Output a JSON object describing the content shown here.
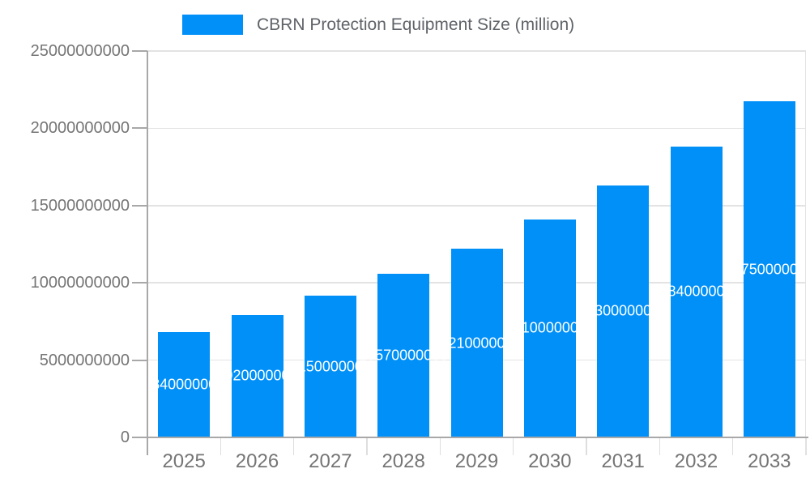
{
  "legend": {
    "label": "CBRN Protection Equipment Size (million)"
  },
  "chart_data": {
    "type": "bar",
    "title": "",
    "categories": [
      "2025",
      "2026",
      "2027",
      "2028",
      "2029",
      "2030",
      "2031",
      "2032",
      "2033"
    ],
    "series": [
      {
        "name": "CBRN Protection Equipment Size (million)",
        "values": [
          6840000000,
          7920000000,
          9150000000,
          10570000000,
          12210000000,
          14100000000,
          16300000000,
          18840000000,
          21750000000
        ]
      }
    ],
    "xlabel": "",
    "ylabel": "",
    "ylim": [
      0,
      25000000000
    ],
    "yticks": [
      0,
      5000000000,
      10000000000,
      15000000000,
      20000000000,
      25000000000
    ],
    "ytick_labels": [
      "0",
      "5000000000",
      "10000000000",
      "15000000000",
      "20000000000",
      "25000000000"
    ],
    "grid": "horizontal",
    "legend_position": "top-center",
    "value_labels": "raw value in white, centered at vertical middle of each bar"
  },
  "colors": {
    "bar": "#0090f8",
    "grid": "#e3e3e3",
    "axis": "#a8a8a8",
    "tick_text": "#757575",
    "legend_text": "#5f6368",
    "value_label": "#ffffff",
    "background": "#ffffff"
  }
}
